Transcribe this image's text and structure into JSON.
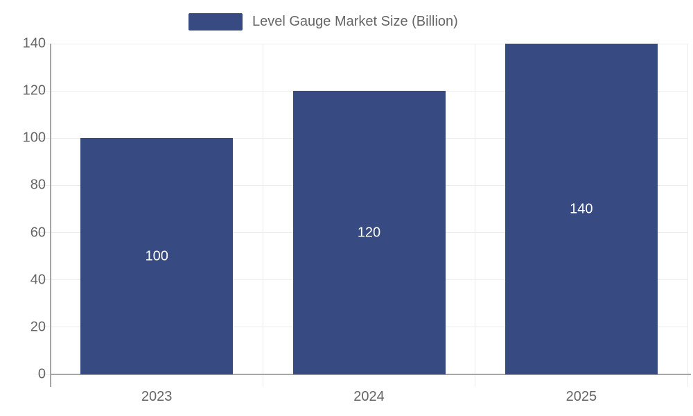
{
  "legend": {
    "label": "Level Gauge Market Size (Billion)"
  },
  "chart_data": {
    "type": "bar",
    "title": "Level Gauge Market Size (Billion)",
    "categories": [
      "2023",
      "2024",
      "2025"
    ],
    "series": [
      {
        "name": "Level Gauge Market Size (Billion)",
        "values": [
          100,
          120,
          140
        ]
      }
    ],
    "data_labels": [
      "100",
      "120",
      "140"
    ],
    "xlabel": "",
    "ylabel": "",
    "ylim": [
      0,
      140
    ],
    "yticks": [
      0,
      20,
      40,
      60,
      80,
      100,
      120,
      140
    ],
    "grid": true,
    "legend_position": "top-center",
    "colors": {
      "bar": "#374A82",
      "data_label": "#FFFFFF",
      "axis_text": "#666666",
      "grid_line": "#EBEBEB",
      "axis_line": "#A6A6A6",
      "background": "#FFFFFF"
    }
  }
}
